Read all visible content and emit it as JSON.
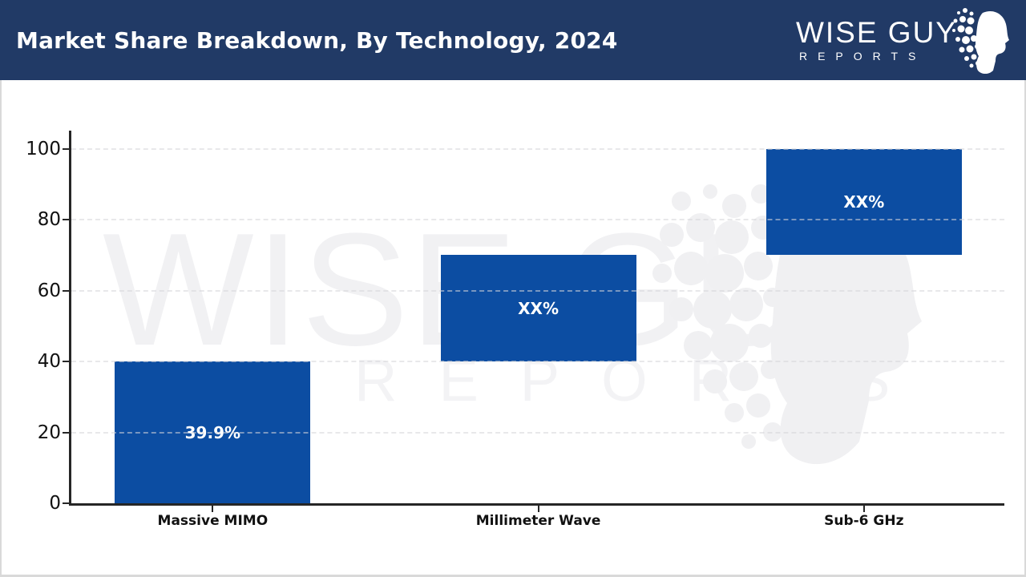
{
  "header": {
    "title": "Market Share Breakdown, By Technology, 2024",
    "logo_line1": "WISE GUY",
    "logo_line2": "REPORTS"
  },
  "watermark": {
    "line1": "WISE GUY",
    "line2": "REPORTS"
  },
  "chart_data": {
    "type": "bar",
    "subtype": "floating-segment-waterfall",
    "title": "Market Share Breakdown, By Technology, 2024",
    "categories": [
      "Massive MIMO",
      "Millimeter Wave",
      "Sub-6 GHz"
    ],
    "bars": [
      {
        "category": "Massive MIMO",
        "start": 0,
        "end": 39.9,
        "label": "39.9%"
      },
      {
        "category": "Millimeter Wave",
        "start": 40,
        "end": 70,
        "label": "XX%"
      },
      {
        "category": "Sub-6 GHz",
        "start": 70,
        "end": 100,
        "label": "XX%"
      }
    ],
    "ylim": [
      0,
      100
    ],
    "yticks": [
      0,
      20,
      40,
      60,
      80,
      100
    ],
    "xlabel": "",
    "ylabel": "",
    "grid": "horizontal-dashed",
    "legend": "none"
  },
  "colors": {
    "header_bg": "#213A66",
    "bar": "#0C4DA2",
    "bar_label": "#FFFFFF",
    "grid": "#E0E0E3",
    "axis": "#262626",
    "watermark": "#F1F1F3",
    "border": "#D9D9D9"
  }
}
